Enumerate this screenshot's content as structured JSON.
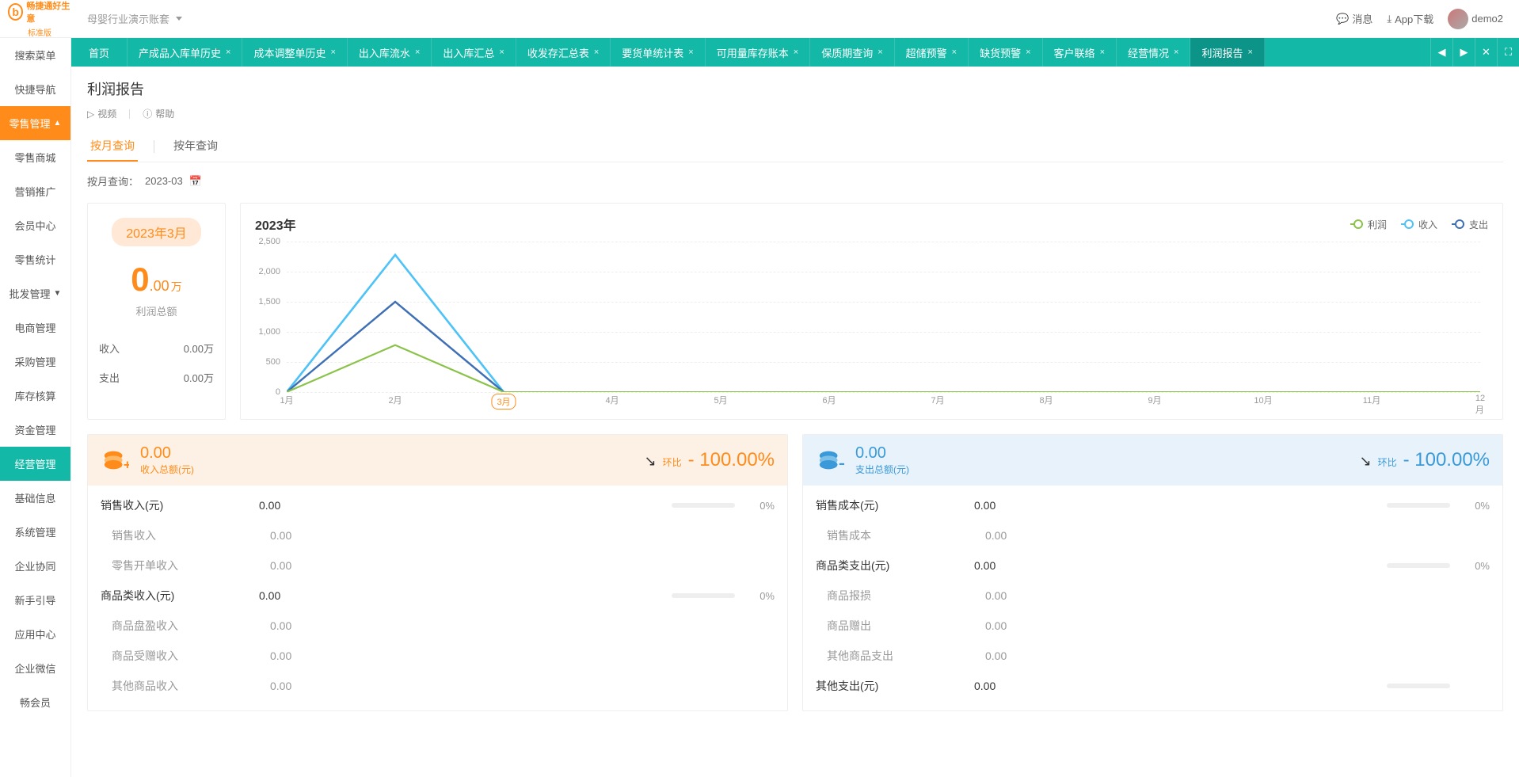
{
  "header": {
    "brand": "畅捷通好生意",
    "brand_sub": "标准版",
    "account_selector": "母婴行业演示账套",
    "msg_label": "消息",
    "download_label": "App下载",
    "username": "demo2"
  },
  "sidebar": {
    "items": [
      {
        "label": "搜索菜单",
        "active": ""
      },
      {
        "label": "快捷导航",
        "active": ""
      },
      {
        "label": "零售管理",
        "active": "orange",
        "caret": "up"
      },
      {
        "label": "零售商城",
        "active": ""
      },
      {
        "label": "营销推广",
        "active": ""
      },
      {
        "label": "会员中心",
        "active": ""
      },
      {
        "label": "零售统计",
        "active": ""
      },
      {
        "label": "批发管理",
        "active": "",
        "caret": "down"
      },
      {
        "label": "电商管理",
        "active": ""
      },
      {
        "label": "采购管理",
        "active": ""
      },
      {
        "label": "库存核算",
        "active": ""
      },
      {
        "label": "资金管理",
        "active": ""
      },
      {
        "label": "经营管理",
        "active": "teal"
      },
      {
        "label": "基础信息",
        "active": ""
      },
      {
        "label": "系统管理",
        "active": ""
      },
      {
        "label": "企业协同",
        "active": ""
      },
      {
        "label": "新手引导",
        "active": ""
      },
      {
        "label": "应用中心",
        "active": ""
      },
      {
        "label": "企业微信",
        "active": ""
      },
      {
        "label": "畅会员",
        "active": ""
      }
    ]
  },
  "tabs": {
    "home": "首页",
    "items": [
      "产成品入库单历史",
      "成本调整单历史",
      "出入库流水",
      "出入库汇总",
      "收发存汇总表",
      "要货单统计表",
      "可用量库存账本",
      "保质期查询",
      "超储预警",
      "缺货预警",
      "客户联络",
      "经营情况",
      "利润报告"
    ],
    "active": "利润报告"
  },
  "page": {
    "title": "利润报告",
    "help_video": "视频",
    "help_help": "帮助",
    "query_tabs": {
      "month": "按月查询",
      "year": "按年查询",
      "active": "month"
    },
    "query_date_label": "按月查询：",
    "query_date_value": "2023-03"
  },
  "summary": {
    "period": "2023年3月",
    "profit_int": "0",
    "profit_dec": ".00",
    "profit_unit": "万",
    "profit_label": "利润总额",
    "income_label": "收入",
    "income_value": "0.00万",
    "expense_label": "支出",
    "expense_value": "0.00万"
  },
  "chart": {
    "title": "2023年",
    "legend": {
      "profit": "利润",
      "income": "收入",
      "expense": "支出"
    },
    "colors": {
      "profit": "#8bc34a",
      "income": "#4fc3f7",
      "expense": "#3f6fb5",
      "grid": "#eeeeee",
      "bg": "#ffffff"
    },
    "x_labels": [
      "1月",
      "2月",
      "3月",
      "4月",
      "5月",
      "6月",
      "7月",
      "8月",
      "9月",
      "10月",
      "11月",
      "12月"
    ],
    "current_x": "3月",
    "y_ticks": [
      0,
      500,
      1000,
      1500,
      2000,
      2500
    ],
    "ylim": [
      0,
      2500
    ],
    "series": {
      "profit": [
        0,
        780,
        0,
        0,
        0,
        0,
        0,
        0,
        0,
        0,
        0,
        0
      ],
      "income": [
        0,
        2280,
        0,
        0,
        0,
        0,
        0,
        0,
        0,
        0,
        0,
        0
      ],
      "expense": [
        0,
        1500,
        0,
        0,
        0,
        0,
        0,
        0,
        0,
        0,
        0,
        0
      ]
    },
    "expense_cutoff_index": 9
  },
  "income_panel": {
    "amount": "0.00",
    "sub": "收入总额(元)",
    "delta_label": "环比",
    "delta_value": "- 100.00%",
    "rows": [
      {
        "label": "销售收入(元)",
        "value": "0.00",
        "pct": "0%",
        "sub": false,
        "show_bar": true
      },
      {
        "label": "销售收入",
        "value": "0.00",
        "sub": true,
        "show_bar": false
      },
      {
        "label": "零售开单收入",
        "value": "0.00",
        "sub": true,
        "show_bar": false
      },
      {
        "label": "商品类收入(元)",
        "value": "0.00",
        "pct": "0%",
        "sub": false,
        "show_bar": true
      },
      {
        "label": "商品盘盈收入",
        "value": "0.00",
        "sub": true,
        "show_bar": false
      },
      {
        "label": "商品受赠收入",
        "value": "0.00",
        "sub": true,
        "show_bar": false
      },
      {
        "label": "其他商品收入",
        "value": "0.00",
        "sub": true,
        "show_bar": false
      }
    ]
  },
  "expense_panel": {
    "amount": "0.00",
    "sub": "支出总额(元)",
    "delta_label": "环比",
    "delta_value": "- 100.00%",
    "rows": [
      {
        "label": "销售成本(元)",
        "value": "0.00",
        "pct": "0%",
        "sub": false,
        "show_bar": true
      },
      {
        "label": "销售成本",
        "value": "0.00",
        "sub": true,
        "show_bar": false
      },
      {
        "label": "商品类支出(元)",
        "value": "0.00",
        "pct": "0%",
        "sub": false,
        "show_bar": true
      },
      {
        "label": "商品报损",
        "value": "0.00",
        "sub": true,
        "show_bar": false
      },
      {
        "label": "商品赠出",
        "value": "0.00",
        "sub": true,
        "show_bar": false
      },
      {
        "label": "其他商品支出",
        "value": "0.00",
        "sub": true,
        "show_bar": false
      },
      {
        "label": "其他支出(元)",
        "value": "0.00",
        "sub": false,
        "show_bar": true
      }
    ]
  }
}
